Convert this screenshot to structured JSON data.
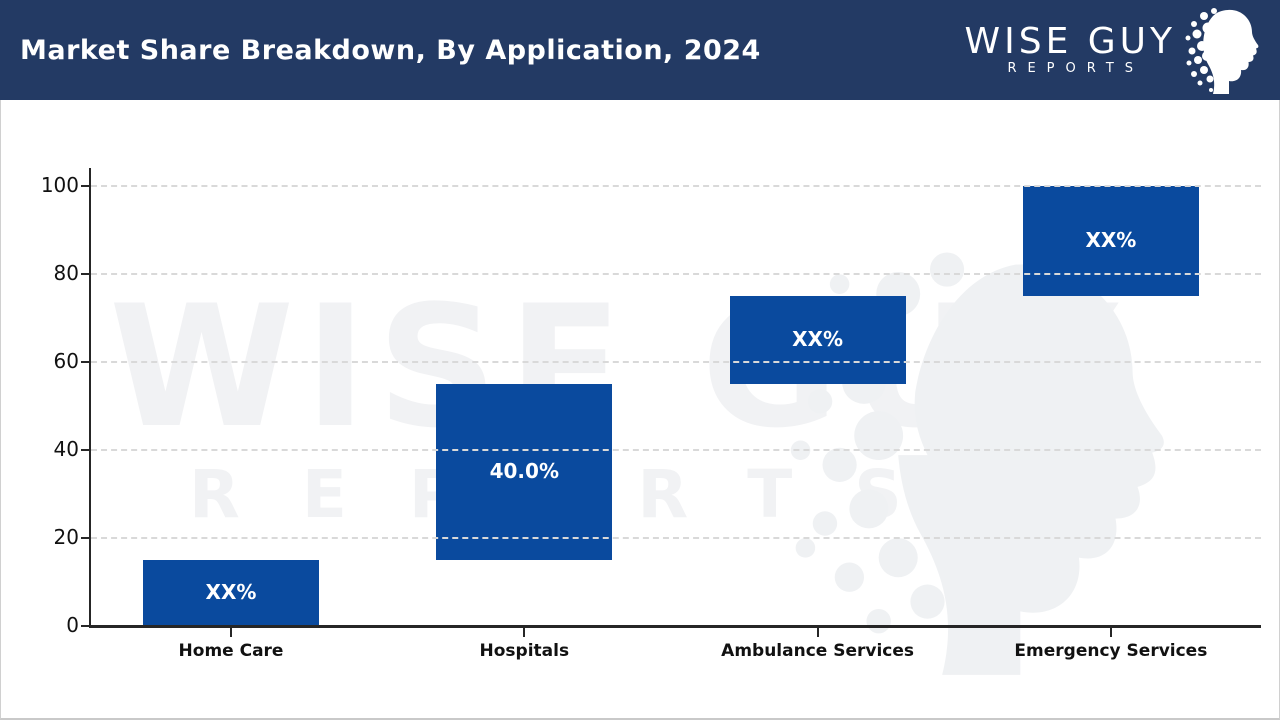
{
  "app": {
    "title": "Market Share Breakdown, By Application, 2024"
  },
  "brand": {
    "line1": "WISE GUY",
    "line2": "REPORTS"
  },
  "watermark": {
    "line1": "WISE GUY",
    "line2": "REPORTS"
  },
  "colors": {
    "header_bg": "#233a64",
    "bar": "#0a4a9e",
    "grid": "#d9d9d9",
    "axis": "#262626",
    "watermark": "#f1f2f4",
    "bar_label": "#ffffff",
    "title_text": "#ffffff"
  },
  "chart_data": {
    "type": "bar",
    "subtype": "waterfall",
    "title": "Market Share Breakdown, By Application, 2024",
    "categories": [
      "Home Care",
      "Hospitals",
      "Ambulance Services",
      "Emergency Services"
    ],
    "segments": [
      {
        "name": "Home Care",
        "start": 0,
        "end": 15,
        "label": "XX%"
      },
      {
        "name": "Hospitals",
        "start": 15,
        "end": 55,
        "label": "40.0%"
      },
      {
        "name": "Ambulance Services",
        "start": 55,
        "end": 75,
        "label": "XX%"
      },
      {
        "name": "Emergency Services",
        "start": 75,
        "end": 100,
        "label": "XX%"
      }
    ],
    "xlabel": "",
    "ylabel": "",
    "ylim": [
      0,
      100
    ],
    "y_ticks": [
      0,
      20,
      40,
      60,
      80,
      100
    ],
    "grid": "horizontal-dashed",
    "legend": "none"
  }
}
